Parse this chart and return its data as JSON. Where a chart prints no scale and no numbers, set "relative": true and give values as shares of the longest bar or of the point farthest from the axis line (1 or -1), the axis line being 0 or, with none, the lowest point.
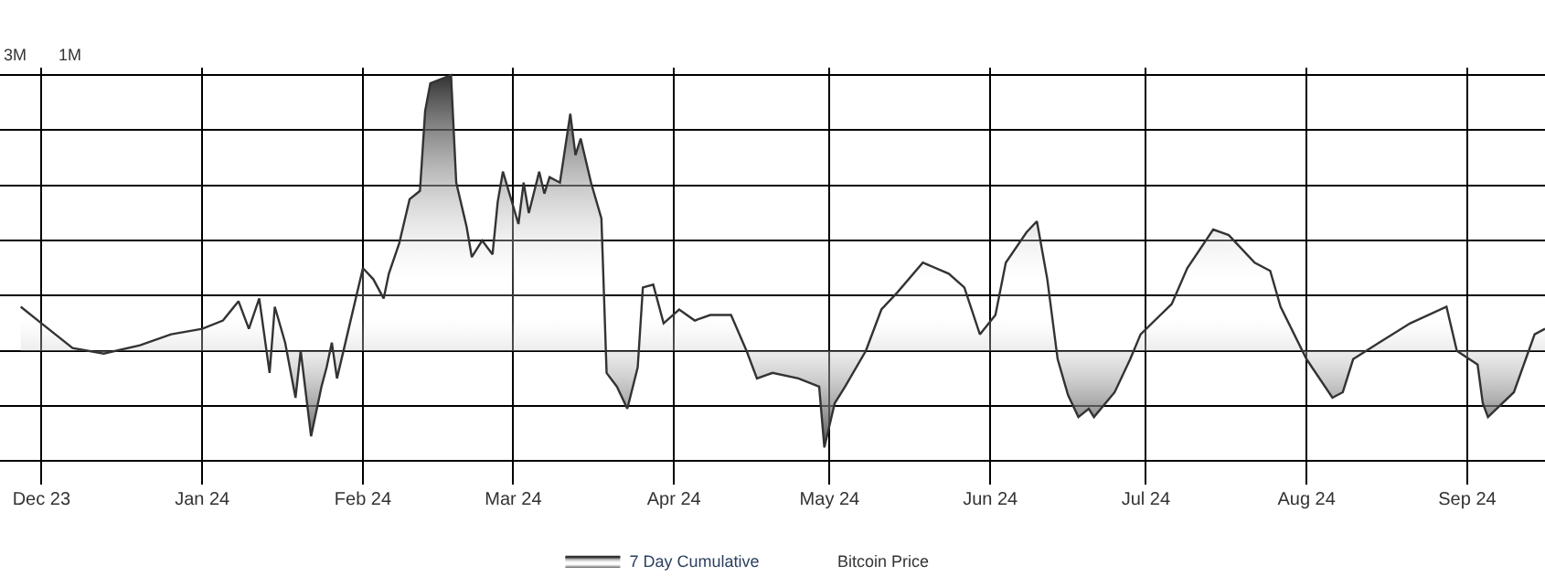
{
  "chart_data": {
    "type": "area",
    "relative": true,
    "grid": true,
    "legend": "bottom",
    "marker": "none",
    "line_style": "solid",
    "annotations": [
      "3M",
      "1M",
      "Bitcoin Price"
    ],
    "xlim": [
      "2023-11-23",
      "2024-09-16"
    ],
    "xticks": [
      {
        "value": "2023-12-01",
        "label": "Dec 23"
      },
      {
        "value": "2024-01-01",
        "label": "Jan 24"
      },
      {
        "value": "2024-02-01",
        "label": "Feb 24"
      },
      {
        "value": "2024-03-01",
        "label": "Mar 24"
      },
      {
        "value": "2024-04-01",
        "label": "Apr 24"
      },
      {
        "value": "2024-05-01",
        "label": "May 24"
      },
      {
        "value": "2024-06-01",
        "label": "Jun 24"
      },
      {
        "value": "2024-07-01",
        "label": "Jul 24"
      },
      {
        "value": "2024-08-01",
        "label": "Aug 24"
      },
      {
        "value": "2024-09-01",
        "label": "Sep 24"
      }
    ],
    "x": [
      "2023-11-27",
      "2023-12-01",
      "2023-12-07",
      "2023-12-13",
      "2023-12-20",
      "2023-12-26",
      "2024-01-01",
      "2024-01-05",
      "2024-01-08",
      "2024-01-10",
      "2024-01-12",
      "2024-01-14",
      "2024-01-15",
      "2024-01-17",
      "2024-01-19",
      "2024-01-20",
      "2024-01-22",
      "2024-01-24",
      "2024-01-25",
      "2024-01-26",
      "2024-01-27",
      "2024-01-29",
      "2024-02-01",
      "2024-02-03",
      "2024-02-05",
      "2024-02-06",
      "2024-02-08",
      "2024-02-10",
      "2024-02-12",
      "2024-02-13",
      "2024-02-14",
      "2024-02-18",
      "2024-02-19",
      "2024-02-21",
      "2024-02-22",
      "2024-02-24",
      "2024-02-26",
      "2024-02-27",
      "2024-02-28",
      "2024-03-02",
      "2024-03-03",
      "2024-03-04",
      "2024-03-06",
      "2024-03-07",
      "2024-03-08",
      "2024-03-10",
      "2024-03-12",
      "2024-03-13",
      "2024-03-14",
      "2024-03-16",
      "2024-03-18",
      "2024-03-19",
      "2024-03-21",
      "2024-03-23",
      "2024-03-25",
      "2024-03-26",
      "2024-03-28",
      "2024-03-30",
      "2024-04-02",
      "2024-04-05",
      "2024-04-08",
      "2024-04-12",
      "2024-04-15",
      "2024-04-17",
      "2024-04-20",
      "2024-04-25",
      "2024-04-29",
      "2024-04-30",
      "2024-05-02",
      "2024-05-04",
      "2024-05-08",
      "2024-05-11",
      "2024-05-14",
      "2024-05-19",
      "2024-05-24",
      "2024-05-27",
      "2024-05-30",
      "2024-06-02",
      "2024-06-04",
      "2024-06-08",
      "2024-06-10",
      "2024-06-12",
      "2024-06-14",
      "2024-06-16",
      "2024-06-18",
      "2024-06-20",
      "2024-06-21",
      "2024-06-25",
      "2024-06-28",
      "2024-06-30",
      "2024-07-06",
      "2024-07-09",
      "2024-07-14",
      "2024-07-17",
      "2024-07-22",
      "2024-07-25",
      "2024-07-27",
      "2024-08-01",
      "2024-08-06",
      "2024-08-08",
      "2024-08-10",
      "2024-08-15",
      "2024-08-21",
      "2024-08-28",
      "2024-08-30",
      "2024-09-03",
      "2024-09-04",
      "2024-09-05",
      "2024-09-10",
      "2024-09-14",
      "2024-09-16"
    ],
    "series": [
      {
        "name": "7 Day Cumulative",
        "color": "#333333",
        "values": [
          0.16,
          0.1,
          0.01,
          -0.01,
          0.02,
          0.06,
          0.08,
          0.11,
          0.18,
          0.08,
          0.19,
          -0.08,
          0.16,
          0.03,
          -0.17,
          0,
          -0.31,
          -0.13,
          -0.06,
          0.03,
          -0.1,
          0.06,
          0.3,
          0.26,
          0.19,
          0.28,
          0.39,
          0.55,
          0.58,
          0.87,
          0.97,
          1,
          0.61,
          0.45,
          0.34,
          0.4,
          0.35,
          0.54,
          0.65,
          0.46,
          0.61,
          0.5,
          0.65,
          0.57,
          0.63,
          0.61,
          0.86,
          0.71,
          0.77,
          0.61,
          0.48,
          -0.08,
          -0.13,
          -0.21,
          -0.06,
          0.23,
          0.24,
          0.1,
          0.15,
          0.11,
          0.13,
          0.13,
          0,
          -0.1,
          -0.08,
          -0.1,
          -0.13,
          -0.35,
          -0.19,
          -0.13,
          0,
          0.15,
          0.21,
          0.32,
          0.28,
          0.23,
          0.06,
          0.13,
          0.32,
          0.43,
          0.47,
          0.26,
          -0.03,
          -0.16,
          -0.24,
          -0.21,
          -0.24,
          -0.15,
          -0.03,
          0.06,
          0.17,
          0.3,
          0.44,
          0.42,
          0.32,
          0.29,
          0.16,
          -0.03,
          -0.17,
          -0.15,
          -0.03,
          0.03,
          0.1,
          0.16,
          0,
          -0.05,
          -0.19,
          -0.24,
          -0.15,
          0.06,
          0.08
        ]
      }
    ]
  }
}
